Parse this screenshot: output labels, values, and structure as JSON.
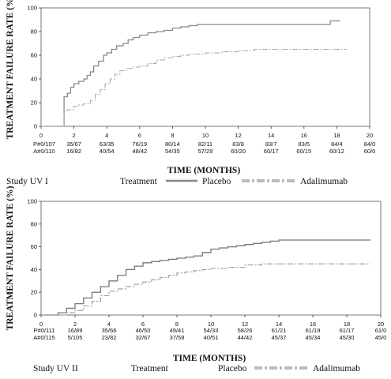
{
  "chart_data": [
    {
      "type": "line",
      "study_label": "Study UV I",
      "ylabel": "TREATMENT FAILURE RATE (%)",
      "xlabel": "TIME (MONTHS)",
      "xlim": [
        0,
        20
      ],
      "ylim": [
        0,
        100
      ],
      "xticks": [
        0,
        2,
        4,
        6,
        8,
        10,
        12,
        14,
        16,
        18,
        20
      ],
      "yticks": [
        0,
        20,
        40,
        60,
        80,
        100
      ],
      "legend_title": "Treatment",
      "series": [
        {
          "name": "Placebo",
          "color": "#888888",
          "dash": "solid",
          "points": [
            [
              0,
              0
            ],
            [
              1.3,
              0
            ],
            [
              1.4,
              25
            ],
            [
              1.6,
              28
            ],
            [
              1.8,
              33
            ],
            [
              2.0,
              36
            ],
            [
              2.3,
              38
            ],
            [
              2.6,
              40
            ],
            [
              2.8,
              43
            ],
            [
              3.0,
              46
            ],
            [
              3.2,
              51
            ],
            [
              3.5,
              55
            ],
            [
              3.8,
              60
            ],
            [
              4.0,
              62
            ],
            [
              4.3,
              65
            ],
            [
              4.6,
              68
            ],
            [
              5.0,
              70
            ],
            [
              5.3,
              73
            ],
            [
              5.6,
              75
            ],
            [
              6.0,
              77
            ],
            [
              6.5,
              79
            ],
            [
              7.0,
              80
            ],
            [
              7.5,
              81
            ],
            [
              8.0,
              83
            ],
            [
              8.5,
              84
            ],
            [
              9.0,
              85
            ],
            [
              9.5,
              86
            ],
            [
              10.0,
              86
            ],
            [
              11.0,
              86
            ],
            [
              12.0,
              86
            ],
            [
              13.0,
              86
            ],
            [
              14.0,
              86
            ],
            [
              15.0,
              86
            ],
            [
              16.0,
              86
            ],
            [
              17.5,
              86
            ],
            [
              17.6,
              89
            ],
            [
              18.2,
              89
            ]
          ]
        },
        {
          "name": "Adalimumab",
          "color": "#aaaaaa",
          "dash": "dashdot",
          "points": [
            [
              0,
              0
            ],
            [
              1.3,
              0
            ],
            [
              1.4,
              13
            ],
            [
              1.6,
              14
            ],
            [
              2.0,
              17
            ],
            [
              2.3,
              18
            ],
            [
              2.6,
              19
            ],
            [
              3.0,
              22
            ],
            [
              3.3,
              27
            ],
            [
              3.6,
              31
            ],
            [
              3.9,
              36
            ],
            [
              4.2,
              40
            ],
            [
              4.5,
              44
            ],
            [
              4.8,
              47
            ],
            [
              5.2,
              49
            ],
            [
              5.6,
              50
            ],
            [
              6.0,
              51
            ],
            [
              6.5,
              53
            ],
            [
              7.0,
              56
            ],
            [
              7.5,
              58
            ],
            [
              8.0,
              59
            ],
            [
              8.5,
              60
            ],
            [
              9.0,
              61
            ],
            [
              10.0,
              62
            ],
            [
              11.0,
              63
            ],
            [
              12.0,
              64
            ],
            [
              13.0,
              65
            ],
            [
              14.0,
              65
            ],
            [
              15.0,
              65
            ],
            [
              16.0,
              65
            ],
            [
              17.0,
              65
            ],
            [
              18.0,
              65
            ],
            [
              18.6,
              65
            ]
          ]
        }
      ],
      "risk_table": {
        "rows": [
          {
            "label": "P#0/107",
            "values": [
              "35/67",
              "63/35",
              "76/19",
              "80/14",
              "82/11",
              "83/8",
              "83/7",
              "83/5",
              "84/4",
              "84/0"
            ]
          },
          {
            "label": "A#0/110",
            "values": [
              "16/82",
              "40/54",
              "48/42",
              "54/35",
              "57/29",
              "60/20",
              "60/17",
              "60/15",
              "60/12",
              "60/0"
            ]
          }
        ]
      }
    },
    {
      "type": "line",
      "study_label": "Study UV II",
      "ylabel": "TREATMENT FAILURE RATE (%)",
      "xlabel": "TIME (MONTHS)",
      "xlim": [
        0,
        20
      ],
      "ylim": [
        0,
        100
      ],
      "xticks": [
        0,
        2,
        4,
        6,
        8,
        10,
        12,
        14,
        16,
        18,
        20
      ],
      "yticks": [
        0,
        20,
        40,
        60,
        80,
        100
      ],
      "legend_title": "Treatment",
      "series": [
        {
          "name": "Placebo",
          "color": "#777777",
          "dash": "solid",
          "points": [
            [
              0,
              0
            ],
            [
              0.8,
              0
            ],
            [
              1.0,
              2
            ],
            [
              1.5,
              6
            ],
            [
              2.0,
              10
            ],
            [
              2.5,
              15
            ],
            [
              3.0,
              20
            ],
            [
              3.5,
              25
            ],
            [
              4.0,
              30
            ],
            [
              4.5,
              35
            ],
            [
              5.0,
              40
            ],
            [
              5.5,
              43
            ],
            [
              6.0,
              46
            ],
            [
              6.5,
              47
            ],
            [
              7.0,
              48
            ],
            [
              7.5,
              49
            ],
            [
              8.0,
              50
            ],
            [
              8.5,
              51
            ],
            [
              9.0,
              52
            ],
            [
              9.5,
              55
            ],
            [
              10.0,
              58
            ],
            [
              10.5,
              59
            ],
            [
              11.0,
              60
            ],
            [
              11.5,
              61
            ],
            [
              12.0,
              62
            ],
            [
              12.5,
              63
            ],
            [
              13.0,
              64
            ],
            [
              13.5,
              65
            ],
            [
              14.0,
              66
            ],
            [
              15.0,
              66
            ],
            [
              16.0,
              66
            ],
            [
              17.0,
              66
            ],
            [
              18.0,
              66
            ],
            [
              19.0,
              66
            ],
            [
              19.4,
              66
            ]
          ]
        },
        {
          "name": "Adalimumab",
          "color": "#999999",
          "dash": "dashdot",
          "points": [
            [
              0,
              0
            ],
            [
              1.3,
              0
            ],
            [
              1.5,
              2
            ],
            [
              2.0,
              4
            ],
            [
              2.5,
              8
            ],
            [
              3.0,
              12
            ],
            [
              3.5,
              17
            ],
            [
              4.0,
              21
            ],
            [
              4.5,
              23
            ],
            [
              5.0,
              25
            ],
            [
              5.5,
              27
            ],
            [
              6.0,
              29
            ],
            [
              6.5,
              31
            ],
            [
              7.0,
              33
            ],
            [
              7.5,
              35
            ],
            [
              8.0,
              37
            ],
            [
              8.5,
              38
            ],
            [
              9.0,
              39
            ],
            [
              9.5,
              40
            ],
            [
              10.0,
              41
            ],
            [
              11.0,
              42
            ],
            [
              12.0,
              44
            ],
            [
              13.0,
              45
            ],
            [
              14.0,
              45
            ],
            [
              15.0,
              45
            ],
            [
              16.0,
              45
            ],
            [
              17.0,
              45
            ],
            [
              18.0,
              45
            ],
            [
              19.0,
              45
            ],
            [
              19.4,
              45
            ]
          ]
        }
      ],
      "risk_table": {
        "rows": [
          {
            "label": "P#0/111",
            "values": [
              "16/89",
              "35/66",
              "46/50",
              "49/41",
              "54/33",
              "58/26",
              "61/21",
              "61/19",
              "61/17",
              "61/0"
            ]
          },
          {
            "label": "A#0/115",
            "values": [
              "5/105",
              "23/82",
              "32/67",
              "37/58",
              "40/51",
              "44/42",
              "45/37",
              "45/34",
              "45/30",
              "45/0"
            ]
          }
        ]
      }
    }
  ]
}
